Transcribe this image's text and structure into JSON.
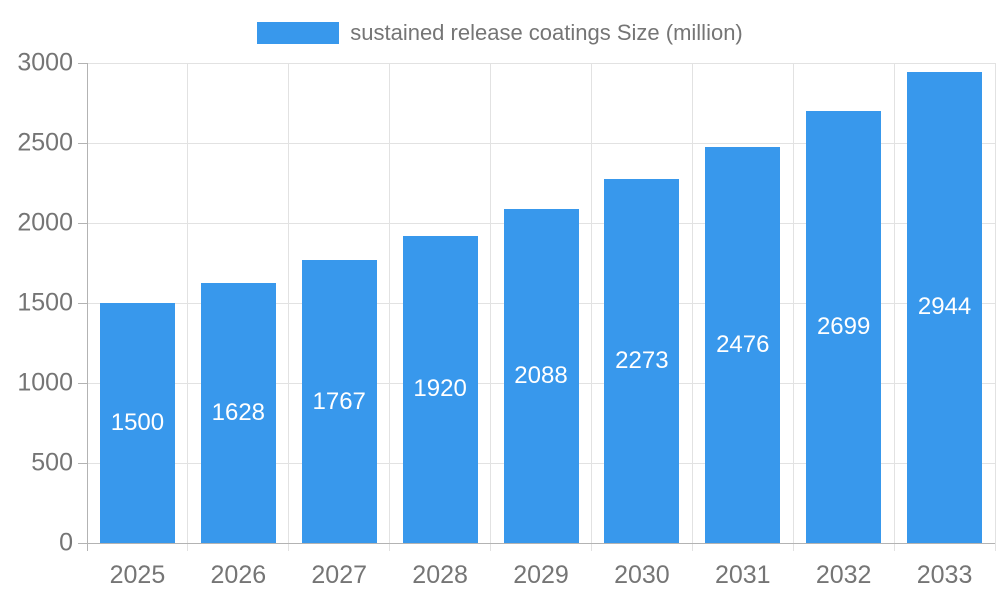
{
  "legend": {
    "label": "sustained release coatings Size (million)"
  },
  "colors": {
    "bar": "#3898ec",
    "bar_label": "#ffffff",
    "grid": "#e2e2e2",
    "axis": "#b3b3b3",
    "text": "#757575"
  },
  "chart_data": {
    "type": "bar",
    "title": "",
    "categories": [
      "2025",
      "2026",
      "2027",
      "2028",
      "2029",
      "2030",
      "2031",
      "2032",
      "2033"
    ],
    "series": [
      {
        "name": "sustained release coatings Size (million)",
        "values": [
          1500,
          1628,
          1767,
          1920,
          2088,
          2273,
          2476,
          2699,
          2944
        ]
      }
    ],
    "xlabel": "",
    "ylabel": "",
    "ylim": [
      0,
      3000
    ],
    "y_ticks": [
      0,
      500,
      1000,
      1500,
      2000,
      2500,
      3000
    ],
    "grid": true,
    "legend_position": "top",
    "value_labels": "inside-center"
  }
}
